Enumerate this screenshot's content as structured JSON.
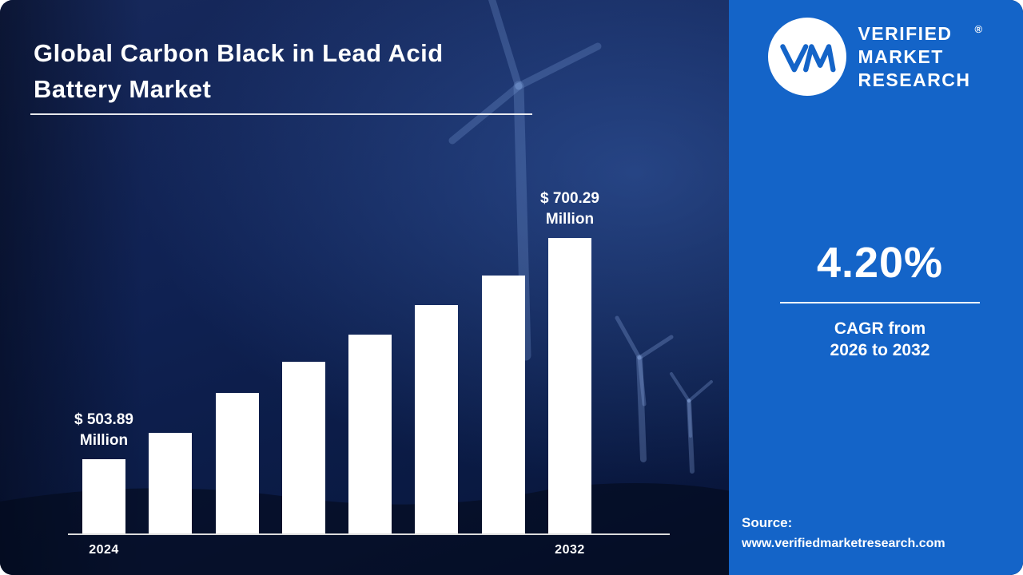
{
  "colors": {
    "panel_blue": "#1464c8",
    "background_navy": "#0c1c44",
    "bar_fill": "#ffffff",
    "text": "#ffffff",
    "axis": "#dcdcdc"
  },
  "header": {
    "title_line1": "Global Carbon Black in Lead Acid",
    "title_line2": "Battery Market"
  },
  "chart_data": {
    "type": "bar",
    "title": "Global Carbon Black in Lead Acid Battery Market",
    "unit": "USD Million",
    "categories": [
      "2024",
      "",
      "",
      "",
      "",
      "",
      "",
      "2032"
    ],
    "values": [
      503.89,
      527.3,
      562.8,
      590.4,
      614.5,
      640.8,
      667.0,
      700.29
    ],
    "labeled_endpoints_only": true,
    "data_labels": [
      {
        "index": 0,
        "line1": "$ 503.89",
        "line2": "Million"
      },
      {
        "index": 7,
        "line1": "$ 700.29",
        "line2": "Million"
      }
    ],
    "xlabel": "",
    "ylabel": "",
    "ylim": [
      438,
      720
    ],
    "grid": false,
    "legend": false,
    "bar_color": "#ffffff"
  },
  "panel": {
    "brand": {
      "line1": "VERIFIED",
      "line2": "MARKET",
      "line3": "RESEARCH",
      "registered": "®",
      "monogram": "VM"
    },
    "cagr": {
      "value": "4.20%",
      "caption_line1": "CAGR from",
      "caption_line2": "2026 to 2032"
    },
    "source": {
      "label": "Source:",
      "url": "www.verifiedmarketresearch.com"
    }
  }
}
